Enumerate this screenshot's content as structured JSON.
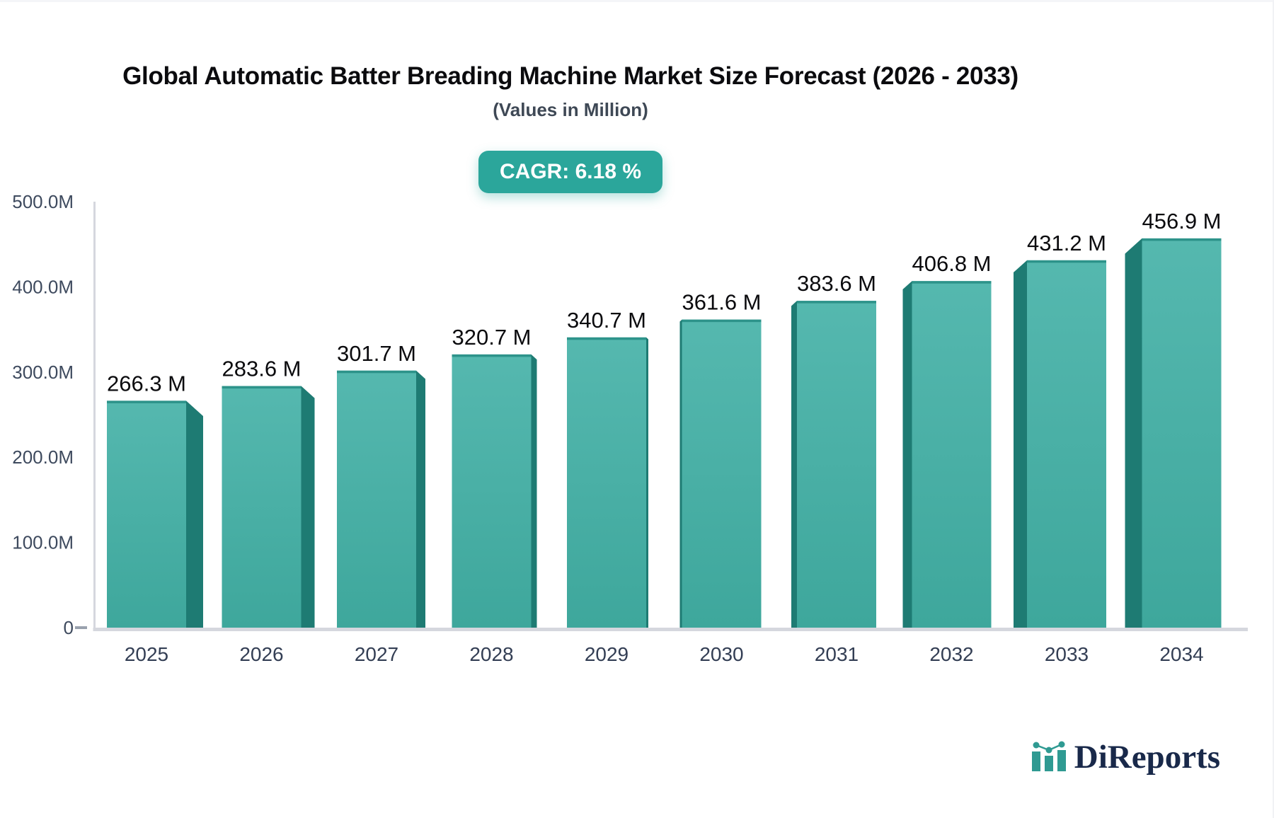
{
  "chart_data": {
    "type": "bar",
    "title": "Global Automatic Batter Breading Machine Market Size Forecast (2026 - 2033)",
    "subtitle": "(Values in Million)",
    "cagr_label": "CAGR: 6.18 %",
    "categories": [
      "2025",
      "2026",
      "2027",
      "2028",
      "2029",
      "2030",
      "2031",
      "2032",
      "2033",
      "2034"
    ],
    "values": [
      266.3,
      283.6,
      301.7,
      320.7,
      340.7,
      361.6,
      383.6,
      406.8,
      431.2,
      456.9
    ],
    "value_labels": [
      "266.3 M",
      "283.6 M",
      "301.7 M",
      "320.7 M",
      "340.7 M",
      "361.6 M",
      "383.6 M",
      "406.8 M",
      "431.2 M",
      "456.9 M"
    ],
    "unit": "Million",
    "ylabel": "",
    "xlabel": "",
    "ylim": [
      0,
      500
    ],
    "ytick_values": [
      0,
      100,
      200,
      300,
      400,
      500
    ],
    "ytick_labels": [
      "0",
      "100.0M",
      "200.0M",
      "300.0M",
      "400.0M",
      "500.0M"
    ],
    "grid": false,
    "legend": "none",
    "style": "3d-perspective-bars",
    "colors": {
      "bar_face_top": "#55b8af",
      "bar_face_bottom": "#3ea79c",
      "bar_side": "#1e7b73",
      "bar_top_edge": "#2d938a",
      "axis": "#d5d7de",
      "tick_dash": "#99a1ae",
      "ytick_label": "#3e4a5e",
      "xtick_label": "#333e54",
      "value_label": "#0b0b0e",
      "badge_bg": "#2ba69b",
      "badge_text": "#ffffff"
    }
  },
  "logo": {
    "text": "DiReports",
    "icon": "bar-line-chart-icon",
    "icon_color": "#2f9a92",
    "text_color": "#19294a"
  }
}
